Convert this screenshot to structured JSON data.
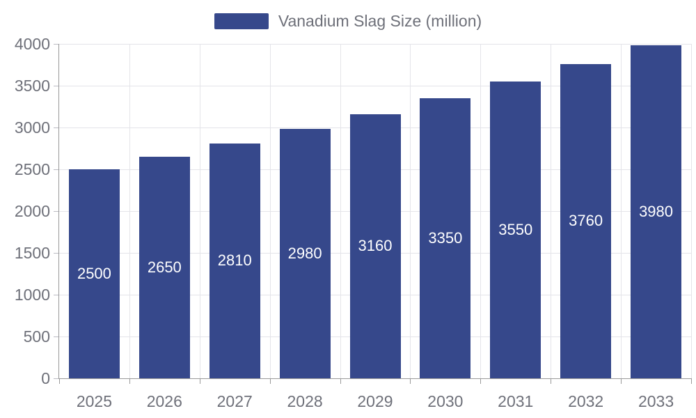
{
  "legend": {
    "label": "Vanadium Slag Size (million)"
  },
  "chart_data": {
    "type": "bar",
    "title": "Vanadium Slag Size (million)",
    "series_name": "Vanadium Slag Size (million)",
    "categories": [
      "2025",
      "2026",
      "2027",
      "2028",
      "2029",
      "2030",
      "2031",
      "2032",
      "2033"
    ],
    "values": [
      2500,
      2650,
      2810,
      2980,
      3160,
      3350,
      3550,
      3760,
      3980
    ],
    "data_labels": [
      "2500",
      "2650",
      "2810",
      "2980",
      "3160",
      "3350",
      "3550",
      "3760",
      "3980"
    ],
    "xlabel": "",
    "ylabel": "",
    "ylim": [
      0,
      4000
    ],
    "yticks": [
      0,
      500,
      1000,
      1500,
      2000,
      2500,
      3000,
      3500,
      4000
    ],
    "grid": true,
    "legend_position": "top",
    "bar_color": "#36488B",
    "bar_label_color": "#FFFFFF",
    "axis_text_color": "#6E7079",
    "grid_color": "#E4E4E9",
    "axis_line_color": "#999999"
  }
}
